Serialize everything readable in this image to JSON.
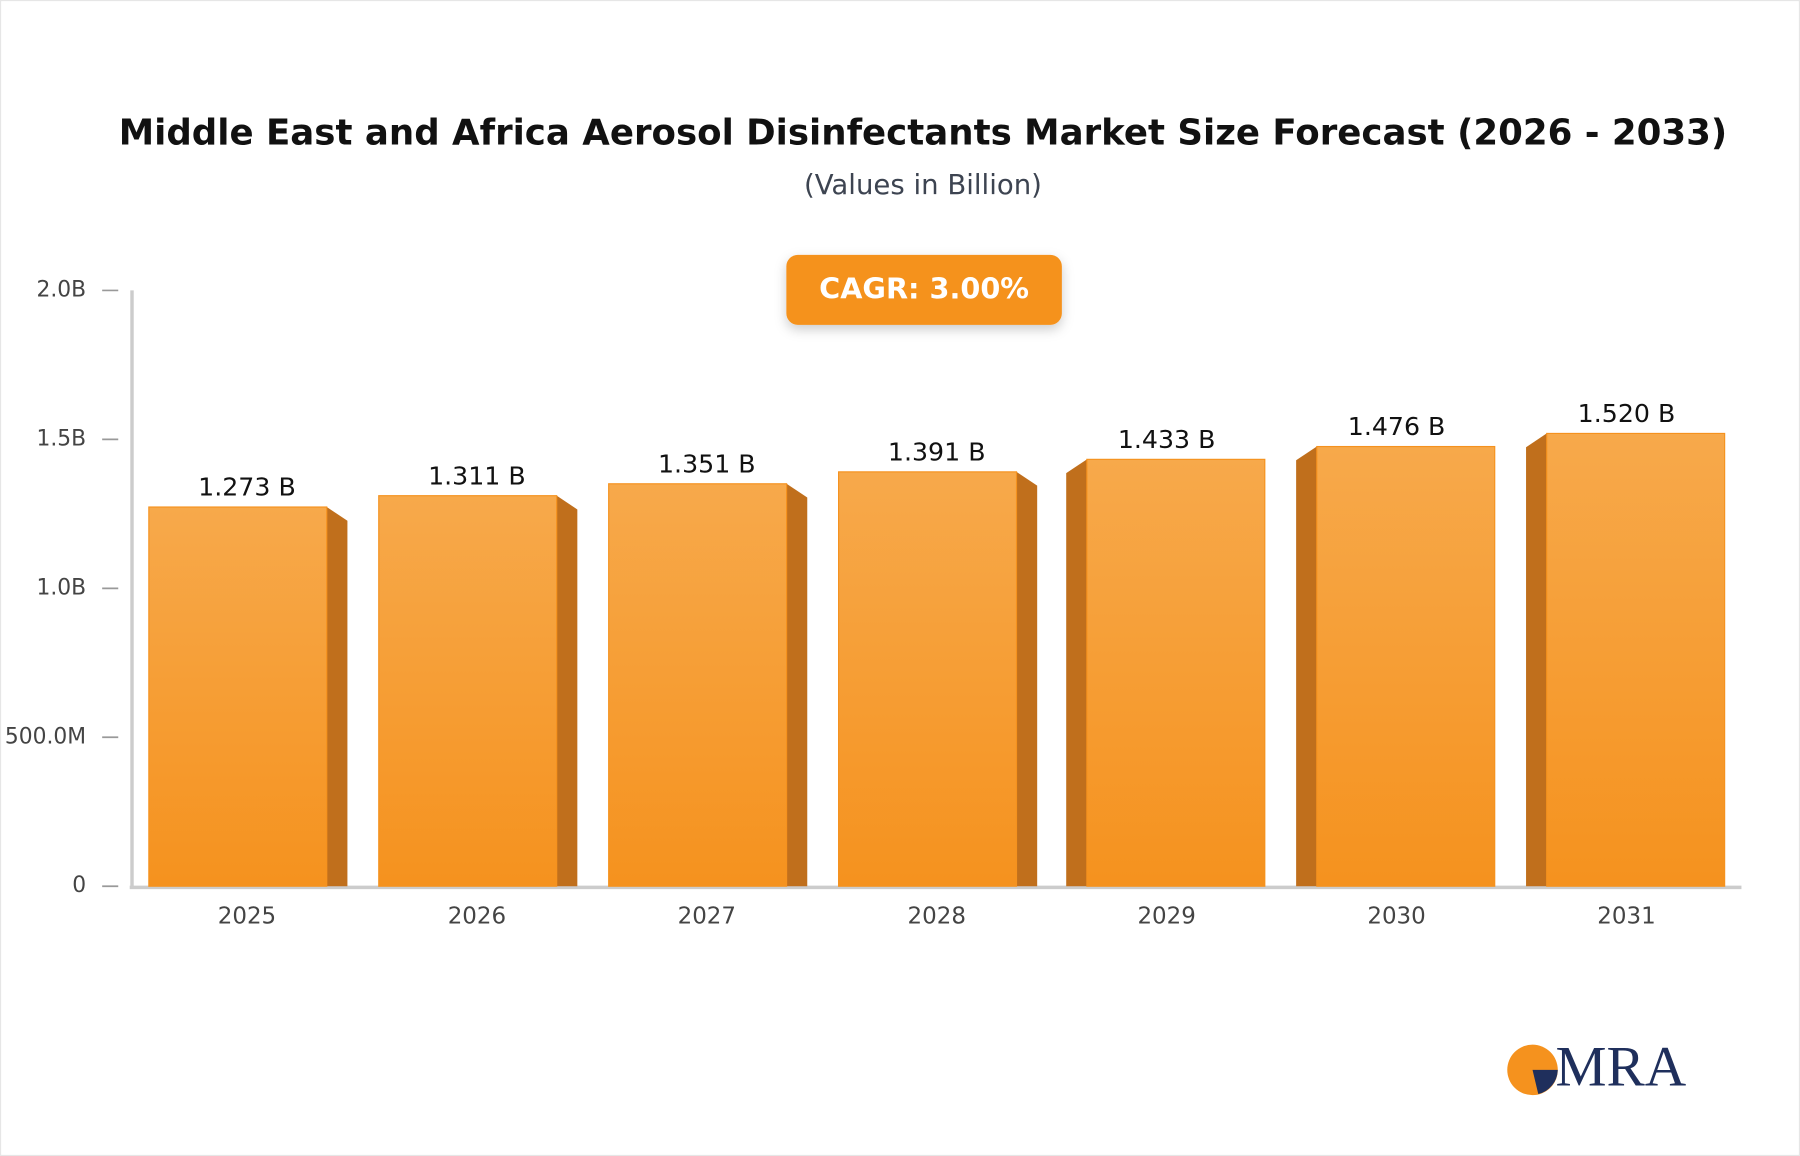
{
  "chart_data": {
    "type": "bar3d",
    "title": "Middle East and Africa Aerosol Disinfectants Market Size Forecast (2026 - 2033)",
    "subtitle": "(Values in Billion)",
    "annotation": "CAGR: 3.00%",
    "categories": [
      "2025",
      "2026",
      "2027",
      "2028",
      "2029",
      "2030",
      "2031"
    ],
    "values": [
      1.273,
      1.311,
      1.351,
      1.391,
      1.433,
      1.476,
      1.52
    ],
    "value_labels": [
      "1.273 B",
      "1.311 B",
      "1.351 B",
      "1.391 B",
      "1.433 B",
      "1.476 B",
      "1.520 B"
    ],
    "color": "#f5921e",
    "ylim": [
      0,
      2
    ],
    "yticks": [
      0,
      {
        "value": 0.5,
        "label": "500.0M"
      },
      {
        "value": 1,
        "label": "1.0B"
      },
      {
        "value": 1.5,
        "label": "1.5B"
      },
      {
        "value": 2,
        "label": "2.0B"
      }
    ]
  },
  "logo": "MRA"
}
